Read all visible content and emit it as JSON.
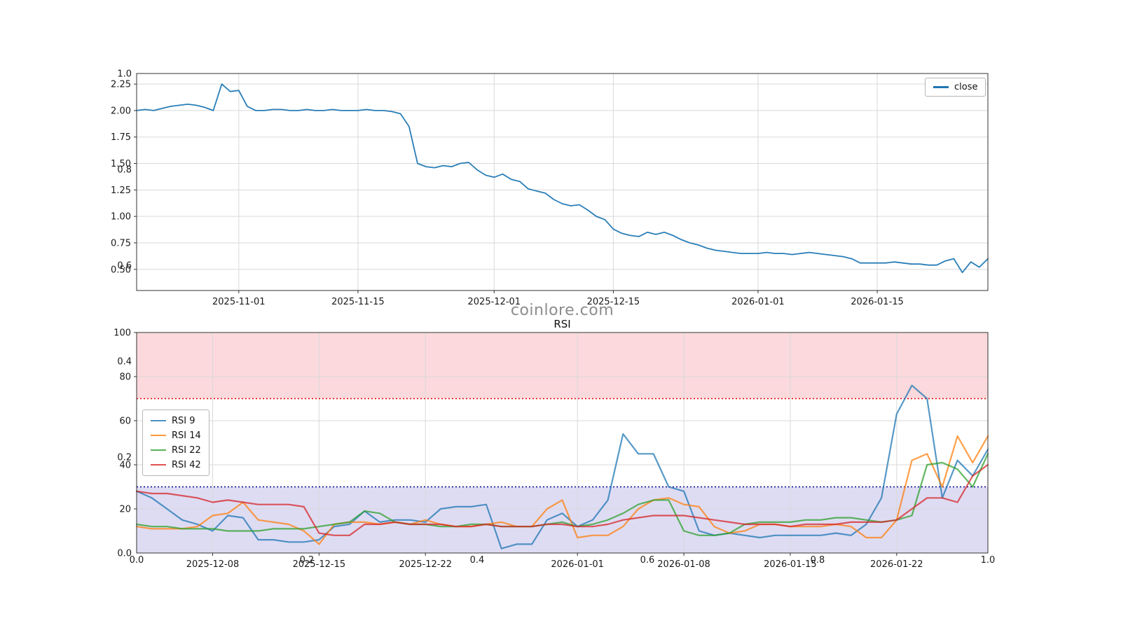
{
  "watermark": "coinlore.com",
  "rsi_title": "RSI",
  "colors": {
    "close": "#1f77b4",
    "rsi9": "#1f77b4",
    "rsi14": "#ff7f0e",
    "rsi22": "#2ca02c",
    "rsi42": "#d62728",
    "overbought_band": "#fbd9dc",
    "oversold_band": "#dedcf3",
    "overbought_line": "#e00000",
    "oversold_line": "#00008b",
    "grid": "#d9d9d9",
    "spine": "#333333",
    "tick_text": "#1a1a1a"
  },
  "ghost_axis": {
    "yticks": [
      "1.0",
      "0.8",
      "0.6",
      "0.4",
      "0.2",
      "0.0"
    ],
    "xticks": [
      "0.0",
      "0.2",
      "0.4",
      "0.6",
      "0.8",
      "1.0"
    ]
  },
  "chart_data": [
    {
      "type": "line",
      "title": "",
      "legend_position": "upper right",
      "grid": true,
      "ylim": [
        0.3,
        2.35
      ],
      "ytick_values": [
        2.25,
        2.0,
        1.75,
        1.5,
        1.25,
        1.0,
        0.75,
        0.5
      ],
      "ytick_labels": [
        "2.25",
        "2.00",
        "1.75",
        "1.50",
        "1.25",
        "1.00",
        "0.75",
        "0.50"
      ],
      "xtick_labels": [
        "2025-11-01",
        "2025-11-15",
        "2025-12-01",
        "2025-12-15",
        "2026-01-01",
        "2026-01-15"
      ],
      "x": [
        "2025-10-20",
        "2025-10-21",
        "2025-10-22",
        "2025-10-23",
        "2025-10-24",
        "2025-10-25",
        "2025-10-26",
        "2025-10-27",
        "2025-10-28",
        "2025-10-29",
        "2025-10-30",
        "2025-10-31",
        "2025-11-01",
        "2025-11-02",
        "2025-11-03",
        "2025-11-04",
        "2025-11-05",
        "2025-11-06",
        "2025-11-07",
        "2025-11-08",
        "2025-11-09",
        "2025-11-10",
        "2025-11-11",
        "2025-11-12",
        "2025-11-13",
        "2025-11-14",
        "2025-11-15",
        "2025-11-16",
        "2025-11-17",
        "2025-11-18",
        "2025-11-19",
        "2025-11-20",
        "2025-11-21",
        "2025-11-22",
        "2025-11-23",
        "2025-11-24",
        "2025-11-25",
        "2025-11-26",
        "2025-11-27",
        "2025-11-28",
        "2025-11-29",
        "2025-11-30",
        "2025-12-01",
        "2025-12-02",
        "2025-12-03",
        "2025-12-04",
        "2025-12-05",
        "2025-12-06",
        "2025-12-07",
        "2025-12-08",
        "2025-12-09",
        "2025-12-10",
        "2025-12-11",
        "2025-12-12",
        "2025-12-13",
        "2025-12-14",
        "2025-12-15",
        "2025-12-16",
        "2025-12-17",
        "2025-12-18",
        "2025-12-19",
        "2025-12-20",
        "2025-12-21",
        "2025-12-22",
        "2025-12-23",
        "2025-12-24",
        "2025-12-25",
        "2025-12-26",
        "2025-12-27",
        "2025-12-28",
        "2025-12-29",
        "2025-12-30",
        "2025-12-31",
        "2026-01-01",
        "2026-01-02",
        "2026-01-03",
        "2026-01-04",
        "2026-01-05",
        "2026-01-06",
        "2026-01-07",
        "2026-01-08",
        "2026-01-09",
        "2026-01-10",
        "2026-01-11",
        "2026-01-12",
        "2026-01-13",
        "2026-01-14",
        "2026-01-15",
        "2026-01-16",
        "2026-01-17",
        "2026-01-18",
        "2026-01-19",
        "2026-01-20",
        "2026-01-21",
        "2026-01-22",
        "2026-01-23",
        "2026-01-24",
        "2026-01-25",
        "2026-01-26",
        "2026-01-27",
        "2026-01-28"
      ],
      "series": [
        {
          "name": "close",
          "color_key": "close",
          "values": [
            2.0,
            2.01,
            2.0,
            2.02,
            2.04,
            2.05,
            2.06,
            2.05,
            2.03,
            2.0,
            2.25,
            2.18,
            2.19,
            2.04,
            2.0,
            2.0,
            2.01,
            2.01,
            2.0,
            2.0,
            2.01,
            2.0,
            2.0,
            2.01,
            2.0,
            2.0,
            2.0,
            2.01,
            2.0,
            2.0,
            1.99,
            1.97,
            1.85,
            1.5,
            1.47,
            1.46,
            1.48,
            1.47,
            1.5,
            1.51,
            1.44,
            1.39,
            1.37,
            1.4,
            1.35,
            1.33,
            1.26,
            1.24,
            1.22,
            1.16,
            1.12,
            1.1,
            1.11,
            1.06,
            1.0,
            0.97,
            0.88,
            0.84,
            0.82,
            0.81,
            0.85,
            0.83,
            0.85,
            0.82,
            0.78,
            0.75,
            0.73,
            0.7,
            0.68,
            0.67,
            0.66,
            0.65,
            0.65,
            0.65,
            0.66,
            0.65,
            0.65,
            0.64,
            0.65,
            0.66,
            0.65,
            0.64,
            0.63,
            0.62,
            0.6,
            0.56,
            0.56,
            0.56,
            0.56,
            0.57,
            0.56,
            0.55,
            0.55,
            0.54,
            0.54,
            0.58,
            0.6,
            0.47,
            0.57,
            0.52,
            0.6
          ]
        }
      ]
    },
    {
      "type": "line",
      "title": "RSI",
      "legend_position": "center left",
      "grid": true,
      "ylim": [
        0,
        100
      ],
      "ytick_values": [
        100,
        80,
        60,
        40,
        20
      ],
      "ytick_labels": [
        "100",
        "80",
        "60",
        "40",
        "20"
      ],
      "xtick_labels": [
        "2025-12-08",
        "2025-12-15",
        "2025-12-22",
        "2026-01-01",
        "2026-01-08",
        "2026-01-15",
        "2026-01-22"
      ],
      "bands": [
        {
          "from": 70,
          "to": 100,
          "color_key": "overbought_band"
        },
        {
          "from": 0,
          "to": 30,
          "color_key": "oversold_band"
        }
      ],
      "hlines": [
        {
          "y": 70,
          "color_key": "overbought_line"
        },
        {
          "y": 30,
          "color_key": "oversold_line"
        }
      ],
      "x": [
        "2025-12-03",
        "2025-12-04",
        "2025-12-05",
        "2025-12-06",
        "2025-12-07",
        "2025-12-08",
        "2025-12-09",
        "2025-12-10",
        "2025-12-11",
        "2025-12-12",
        "2025-12-13",
        "2025-12-14",
        "2025-12-15",
        "2025-12-16",
        "2025-12-17",
        "2025-12-18",
        "2025-12-19",
        "2025-12-20",
        "2025-12-21",
        "2025-12-22",
        "2025-12-23",
        "2025-12-24",
        "2025-12-25",
        "2025-12-26",
        "2025-12-27",
        "2025-12-28",
        "2025-12-29",
        "2025-12-30",
        "2025-12-31",
        "2026-01-01",
        "2026-01-02",
        "2026-01-03",
        "2026-01-04",
        "2026-01-05",
        "2026-01-06",
        "2026-01-07",
        "2026-01-08",
        "2026-01-09",
        "2026-01-10",
        "2026-01-11",
        "2026-01-12",
        "2026-01-13",
        "2026-01-14",
        "2026-01-15",
        "2026-01-16",
        "2026-01-17",
        "2026-01-18",
        "2026-01-19",
        "2026-01-20",
        "2026-01-21",
        "2026-01-22",
        "2026-01-23",
        "2026-01-24",
        "2026-01-25",
        "2026-01-26",
        "2026-01-27",
        "2026-01-28"
      ],
      "series": [
        {
          "name": "RSI 9",
          "color_key": "rsi9",
          "values": [
            28,
            25,
            20,
            15,
            13,
            10,
            17,
            16,
            6,
            6,
            5,
            5,
            6,
            12,
            13,
            19,
            14,
            15,
            15,
            14,
            20,
            21,
            21,
            22,
            2,
            4,
            4,
            15,
            18,
            12,
            15,
            24,
            54,
            45,
            45,
            30,
            28,
            10,
            8,
            9,
            8,
            7,
            8,
            8,
            8,
            8,
            9,
            8,
            13,
            25,
            63,
            76,
            70,
            25,
            42,
            35,
            47
          ]
        },
        {
          "name": "RSI 14",
          "color_key": "rsi14",
          "values": [
            12,
            11,
            11,
            11,
            12,
            17,
            18,
            23,
            15,
            14,
            13,
            10,
            4,
            13,
            14,
            14,
            13,
            14,
            13,
            15,
            13,
            12,
            12,
            13,
            14,
            12,
            12,
            20,
            24,
            7,
            8,
            8,
            12,
            20,
            24,
            25,
            22,
            21,
            12,
            9,
            10,
            13,
            13,
            12,
            12,
            12,
            13,
            12,
            7,
            7,
            15,
            42,
            45,
            30,
            53,
            41,
            53
          ]
        },
        {
          "name": "RSI 22",
          "color_key": "rsi22",
          "values": [
            13,
            12,
            12,
            11,
            11,
            11,
            10,
            10,
            10,
            11,
            11,
            11,
            12,
            13,
            14,
            19,
            18,
            14,
            13,
            13,
            12,
            12,
            13,
            13,
            12,
            12,
            12,
            13,
            14,
            12,
            13,
            15,
            18,
            22,
            24,
            24,
            10,
            8,
            8,
            9,
            13,
            14,
            14,
            14,
            15,
            15,
            16,
            16,
            15,
            14,
            15,
            17,
            40,
            41,
            38,
            30,
            45
          ]
        },
        {
          "name": "RSI 42",
          "color_key": "rsi42",
          "values": [
            28,
            27,
            27,
            26,
            25,
            23,
            24,
            23,
            22,
            22,
            22,
            21,
            9,
            8,
            8,
            13,
            13,
            14,
            13,
            13,
            13,
            12,
            12,
            13,
            12,
            12,
            12,
            13,
            13,
            12,
            12,
            13,
            15,
            16,
            17,
            17,
            17,
            16,
            15,
            14,
            13,
            13,
            13,
            12,
            13,
            13,
            13,
            14,
            14,
            14,
            15,
            20,
            25,
            25,
            23,
            35,
            40
          ]
        }
      ]
    }
  ]
}
